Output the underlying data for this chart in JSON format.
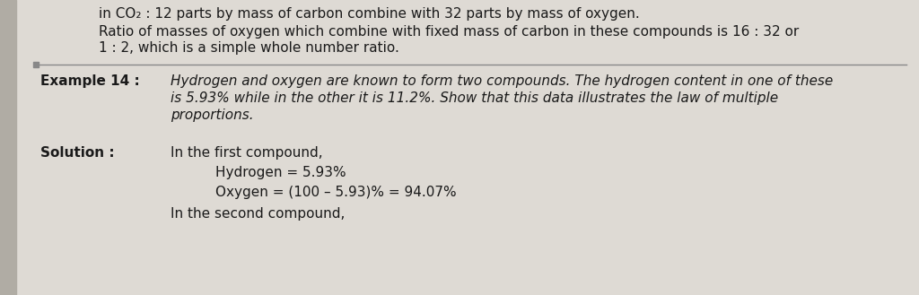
{
  "bg_color": "#c8c4bc",
  "content_bg": "#e8e5e0",
  "text_color": "#1a1a1a",
  "top_line": "in CO₂ : 12 parts by mass of carbon combine with 32 parts by mass of oxygen.",
  "para1_line1": "Ratio of masses of oxygen which combine with fixed mass of carbon in these compounds is 16 : 32 or",
  "para1_line2": "1 : 2, which is a simple whole number ratio.",
  "example_label": "Example 14 :",
  "ex_line1": "Hydrogen and oxygen are known to form two compounds. The hydrogen content in one of these",
  "ex_line2": "is 5.93% while in the other it is 11.2%. Show that this data illustrates the law of multiple",
  "ex_line3": "proportions.",
  "solution_label": "Solution :",
  "sol_line1": "In the first compound,",
  "sol_indent1": "Hydrogen = 5.93%",
  "sol_indent2": "Oxygen = (100 – 5.93)% = 94.07%",
  "sol_line2": "In the second compound,",
  "separator_color": "#888888",
  "left_bar_color": "#777777",
  "font_size": 11.0,
  "font_size_small": 10.5
}
